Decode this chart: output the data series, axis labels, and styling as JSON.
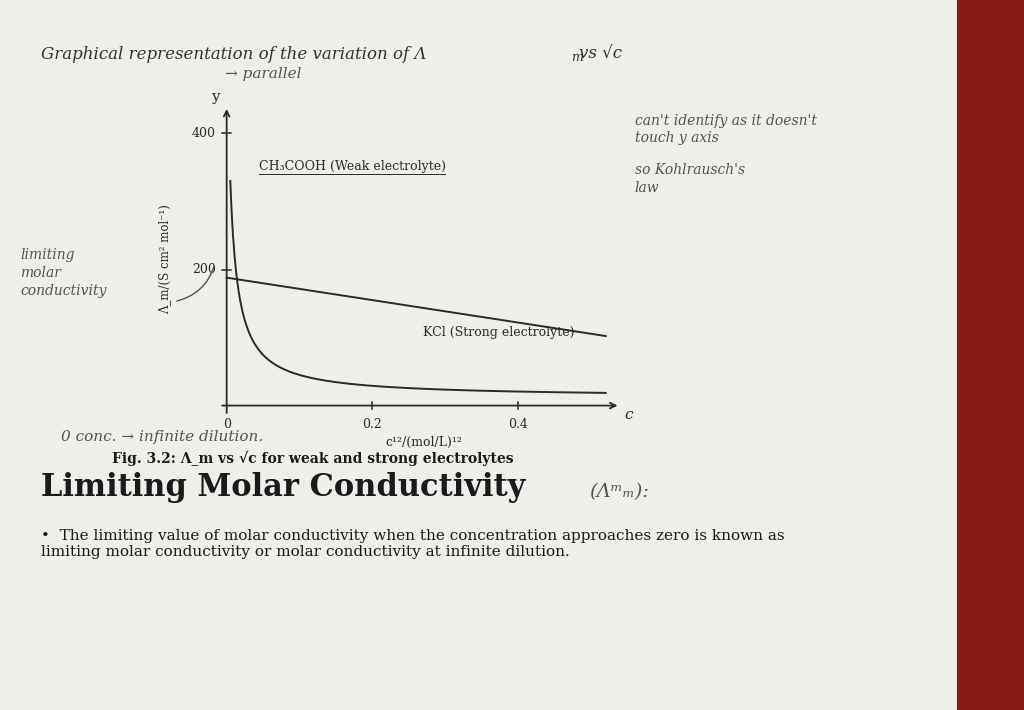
{
  "fig_caption": "Fig. 3.2: Λ_m vs √c for weak and strong electrolytes",
  "xlabel": "c¹²/(mol/L)¹²",
  "ylabel": "Λ_m/(S cm² mol⁻¹)",
  "weak_label": "CH₃COOH (Weak electrolyte)",
  "strong_label": "KCl (Strong electrolyte)",
  "page_bg": "#f0eeea",
  "red_bg": "#8b1a1a",
  "line_color": "#2a2a2a",
  "text_color": "#1a1a1a",
  "handwrite_color": "#555555",
  "printed_color": "#1a1a1a",
  "font_size_labels": 9,
  "font_size_caption": 10,
  "font_size_handwrite": 11,
  "font_size_section": 22,
  "font_size_bullet": 11
}
